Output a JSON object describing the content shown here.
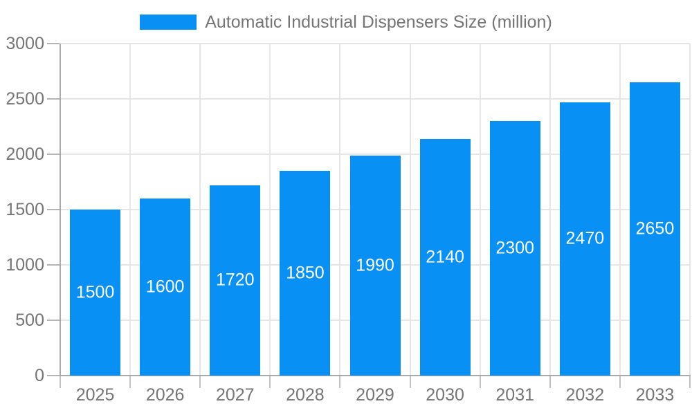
{
  "legend": {
    "label": "Automatic Industrial Dispensers Size (million)",
    "swatch_color": "#0890f5"
  },
  "chart_data": {
    "type": "bar",
    "title": "Automatic Industrial Dispensers Size (million)",
    "series_name": "Automatic Industrial Dispensers Size (million)",
    "categories": [
      "2025",
      "2026",
      "2027",
      "2028",
      "2029",
      "2030",
      "2031",
      "2032",
      "2033"
    ],
    "values": [
      1500,
      1600,
      1720,
      1850,
      1990,
      2140,
      2300,
      2470,
      2650
    ],
    "bar_labels": [
      "1500",
      "1600",
      "1720",
      "1850",
      "1990",
      "2140",
      "2300",
      "2470",
      "2650"
    ],
    "xlabel": "",
    "ylabel": "",
    "ylim": [
      0,
      3000
    ],
    "y_ticks": [
      0,
      500,
      1000,
      1500,
      2000,
      2500,
      3000
    ],
    "y_tick_labels": [
      "0",
      "500",
      "1000",
      "1500",
      "2000",
      "2500",
      "3000"
    ],
    "grid": true,
    "legend_position": "top",
    "colors": {
      "bar": "#0890f5",
      "bar_label": "#ffffff",
      "axis_text": "#757575",
      "grid_line": "#e6e6e6",
      "axis_line": "#a9a9a9",
      "background": "#ffffff"
    }
  }
}
